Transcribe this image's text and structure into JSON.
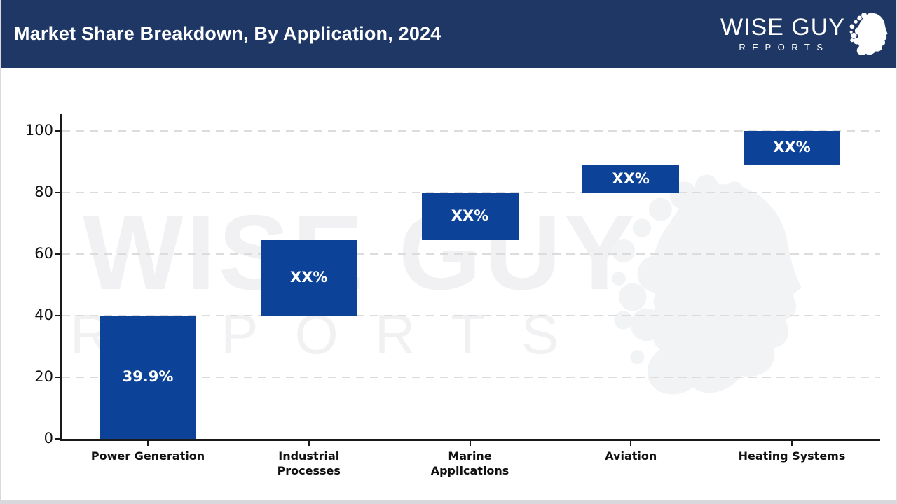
{
  "header": {
    "title": "Market Share Breakdown, By Application, 2024",
    "logo": {
      "line1": "WISE GUY",
      "line2": "REPORTS",
      "icon": "head-profile-dots-icon"
    }
  },
  "watermark": {
    "line1": "WISE GUY",
    "line2": "REPORTS",
    "icon": "head-profile-dots-icon"
  },
  "colors": {
    "header_bg": "#1e3765",
    "bar": "#0c4399",
    "bar_label": "#ffffff",
    "gridline": "#dcdcdc",
    "axis": "#1a1a1a",
    "tick_label": "#111111",
    "watermark": "#f1f1f3",
    "footer_strip": "#d9d9dd"
  },
  "chart_data": {
    "type": "waterfall",
    "title": "Market Share Breakdown, By Application, 2024",
    "categories": [
      "Power Generation",
      "Industrial Processes",
      "Marine Applications",
      "Aviation",
      "Heating Systems"
    ],
    "categories_display": [
      [
        "Power Generation"
      ],
      [
        "Industrial",
        "Processes"
      ],
      [
        "Marine",
        "Applications"
      ],
      [
        "Aviation"
      ],
      [
        "Heating Systems"
      ]
    ],
    "segments": [
      {
        "category": "Power Generation",
        "start": 0,
        "end": 39.9,
        "value": 39.9,
        "label": "39.9%"
      },
      {
        "category": "Industrial Processes",
        "start": 39.9,
        "end": 64.6,
        "value": 24.7,
        "label": "XX%"
      },
      {
        "category": "Marine Applications",
        "start": 64.6,
        "end": 79.8,
        "value": 15.2,
        "label": "XX%"
      },
      {
        "category": "Aviation",
        "start": 79.8,
        "end": 89.0,
        "value": 9.2,
        "label": "XX%"
      },
      {
        "category": "Heating Systems",
        "start": 89.0,
        "end": 100,
        "value": 11.0,
        "label": "XX%"
      }
    ],
    "yticks": [
      0,
      20,
      40,
      60,
      80,
      100
    ],
    "ylim": [
      0,
      105
    ],
    "xlabel": "",
    "ylabel": "",
    "grid": "dashed-horizontal",
    "legend": null
  }
}
